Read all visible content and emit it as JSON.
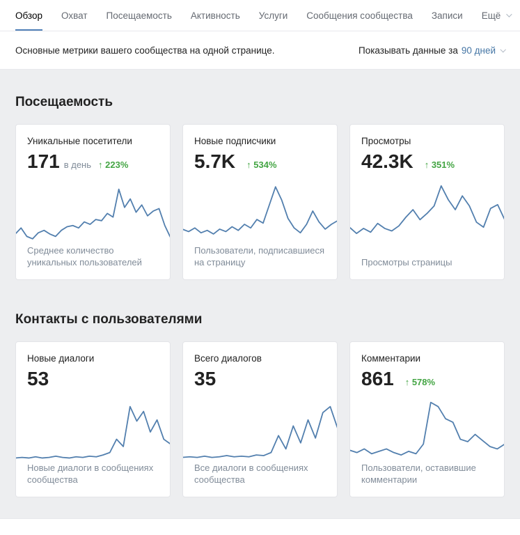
{
  "nav": {
    "tabs": [
      {
        "label": "Обзор",
        "active": true
      },
      {
        "label": "Охват",
        "active": false
      },
      {
        "label": "Посещаемость",
        "active": false
      },
      {
        "label": "Активность",
        "active": false
      },
      {
        "label": "Услуги",
        "active": false
      },
      {
        "label": "Сообщения сообщества",
        "active": false
      },
      {
        "label": "Записи",
        "active": false
      },
      {
        "label": "Ещё",
        "active": false
      }
    ]
  },
  "subheader": {
    "description": "Основные метрики вашего сообщества на одной странице.",
    "period_label": "Показывать данные за",
    "period_value": "90 дней"
  },
  "sections": [
    {
      "title": "Посещаемость",
      "cards": [
        {
          "title": "Уникальные посетители",
          "value": "171",
          "suffix": "в день",
          "delta": "↑ 223%",
          "caption": "Среднее количество уникальных пользователей",
          "spark": [
            14,
            24,
            10,
            6,
            16,
            20,
            14,
            10,
            20,
            26,
            28,
            24,
            34,
            30,
            38,
            36,
            48,
            42,
            88,
            58,
            72,
            50,
            62,
            44,
            52,
            56,
            28,
            8
          ]
        },
        {
          "title": "Новые подписчики",
          "value": "5.7K",
          "suffix": "",
          "delta": "↑ 534%",
          "caption": "Пользователи, подписавшиеся на страницу",
          "spark": [
            22,
            18,
            24,
            16,
            20,
            14,
            22,
            18,
            26,
            20,
            30,
            24,
            38,
            32,
            62,
            92,
            70,
            40,
            24,
            16,
            30,
            52,
            34,
            22,
            30,
            36
          ]
        },
        {
          "title": "Просмотры",
          "value": "42.3K",
          "suffix": "",
          "delta": "↑ 351%",
          "caption": "Просмотры страницы",
          "spark": [
            28,
            18,
            26,
            20,
            34,
            26,
            22,
            30,
            44,
            56,
            40,
            50,
            62,
            94,
            72,
            56,
            78,
            62,
            36,
            28,
            58,
            64,
            40
          ]
        }
      ]
    },
    {
      "title": "Контакты с пользователями",
      "cards": [
        {
          "title": "Новые диалоги",
          "value": "53",
          "suffix": "",
          "delta": "",
          "caption": "Новые диалоги в сообщениях сообщества",
          "spark": [
            3,
            4,
            3,
            5,
            3,
            4,
            6,
            4,
            3,
            5,
            4,
            6,
            5,
            8,
            12,
            34,
            22,
            88,
            64,
            80,
            46,
            66,
            34,
            26
          ]
        },
        {
          "title": "Всего диалогов",
          "value": "35",
          "suffix": "",
          "delta": "",
          "caption": "Все диалоги в сообщениях сообщества",
          "spark": [
            4,
            5,
            4,
            6,
            4,
            5,
            7,
            5,
            6,
            5,
            8,
            7,
            12,
            40,
            18,
            56,
            28,
            66,
            36,
            78,
            88,
            52
          ]
        },
        {
          "title": "Комментарии",
          "value": "861",
          "suffix": "",
          "delta": "↑ 578%",
          "caption": "Пользователи, оставившие комментарии",
          "spark": [
            16,
            12,
            18,
            10,
            14,
            18,
            12,
            8,
            14,
            10,
            26,
            95,
            88,
            68,
            62,
            34,
            30,
            42,
            32,
            22,
            18,
            26
          ]
        }
      ]
    }
  ],
  "colors": {
    "accent_blue": "#5181b8",
    "link_blue": "#4576a5",
    "positive_green": "#44a544",
    "spark_blue": "#527fae",
    "page_bg": "#edeef0"
  }
}
